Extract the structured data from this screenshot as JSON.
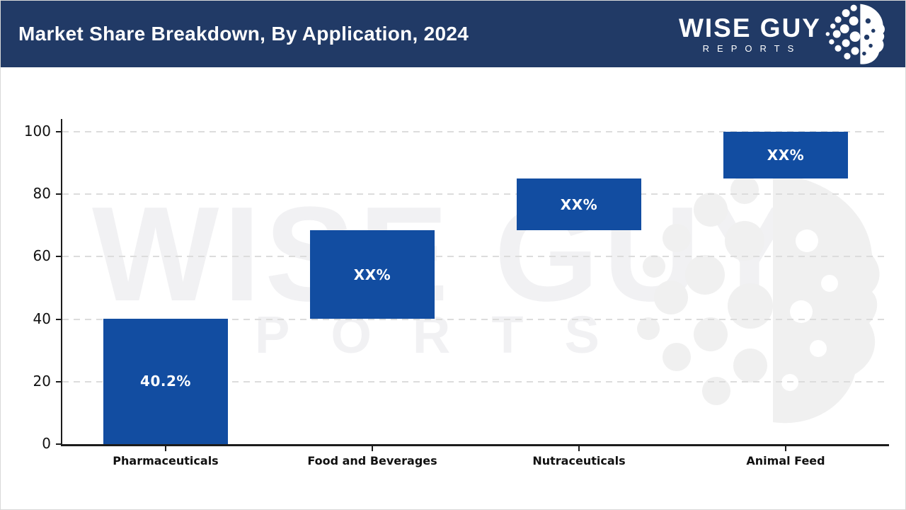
{
  "header": {
    "title": "Market Share Breakdown, By Application, 2024",
    "logo": {
      "line1": "WISE GUY",
      "line2": "REPORTS"
    }
  },
  "watermark": {
    "line1": "WISE GUY",
    "line2": "PORTS"
  },
  "colors": {
    "header_bg": "#213a66",
    "bar": "#124da1",
    "axis": "#1c1c1c",
    "grid": "#dcdcdc",
    "bar_label": "#ffffff",
    "watermark": "#f1f1f3"
  },
  "chart_data": {
    "type": "bar",
    "subtype": "waterfall",
    "title": "Market Share Breakdown, By Application, 2024",
    "categories": [
      "Pharmaceuticals",
      "Food and Beverages",
      "Nutraceuticals",
      "Animal Feed"
    ],
    "series": [
      {
        "name": "Market Share",
        "segments": [
          {
            "category": "Pharmaceuticals",
            "start": 0,
            "end": 40.2,
            "label": "40.2%"
          },
          {
            "category": "Food and Beverages",
            "start": 40.2,
            "end": 68.4,
            "label": "XX%"
          },
          {
            "category": "Nutraceuticals",
            "start": 68.4,
            "end": 85.0,
            "label": "XX%"
          },
          {
            "category": "Animal Feed",
            "start": 85.0,
            "end": 100,
            "label": "XX%"
          }
        ]
      }
    ],
    "xlabel": "",
    "ylabel": "",
    "ylim": [
      0,
      105
    ],
    "yticks": [
      0,
      20,
      40,
      60,
      80,
      100
    ],
    "grid": "horizontal-dashed",
    "legend": "none"
  }
}
